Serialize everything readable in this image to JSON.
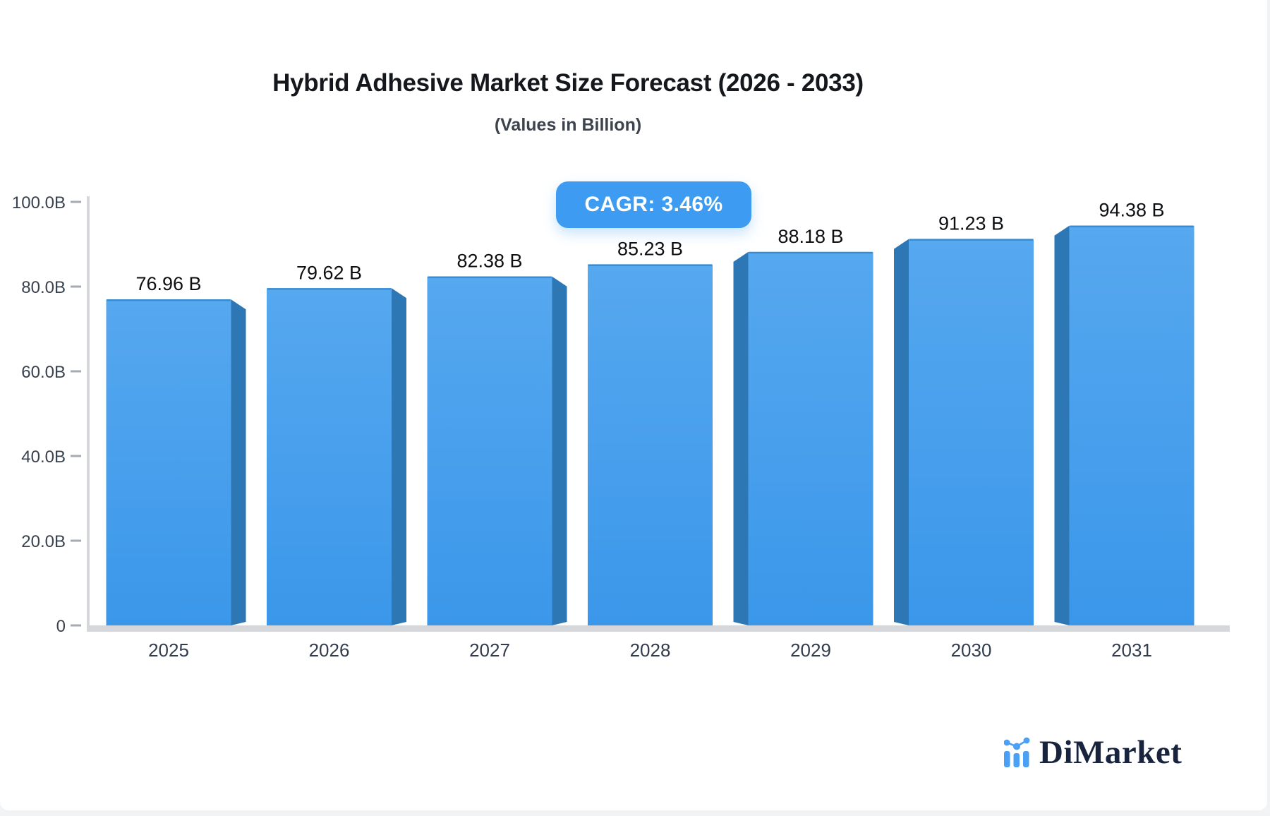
{
  "colors": {
    "accent_blue": "#3d9cf1",
    "bar_face_top": "#56a8ef",
    "bar_face_bottom": "#3b97ea",
    "bar_side": "#2e77b5",
    "bar_top_edge": "#2f86d0",
    "axis_gray": "#d5d7da",
    "tick_gray": "#a6abb3",
    "axis_label_color": "#39424f",
    "value_label_color": "#0d0f12",
    "brand_navy": "#18243e"
  },
  "chart_data": {
    "type": "bar",
    "title": "Hybrid Adhesive Market Size Forecast (2026 - 2033)",
    "subtitle": "(Values in Billion)",
    "cagr_label": "CAGR: 3.46%",
    "categories": [
      "2025",
      "2026",
      "2027",
      "2028",
      "2029",
      "2030",
      "2031"
    ],
    "values": [
      76.96,
      79.62,
      82.38,
      85.23,
      88.18,
      91.23,
      94.38
    ],
    "value_labels": [
      "76.96 B",
      "79.62 B",
      "82.38 B",
      "85.23 B",
      "88.18 B",
      "91.23 B",
      "94.38 B"
    ],
    "series_name": "Market Size",
    "xlabel": "",
    "ylabel": "",
    "ylim": [
      0,
      100
    ],
    "yticks": {
      "values": [
        0,
        20,
        40,
        60,
        80,
        100
      ],
      "labels": [
        "0",
        "20.0B",
        "40.0B",
        "60.0B",
        "80.0B",
        "100.0B"
      ]
    },
    "grid": false,
    "legend": false,
    "bar_style": "3d-perspective-blue"
  },
  "brand": {
    "name": "DiMarket",
    "icon": "mini-bar-chart-icon"
  }
}
